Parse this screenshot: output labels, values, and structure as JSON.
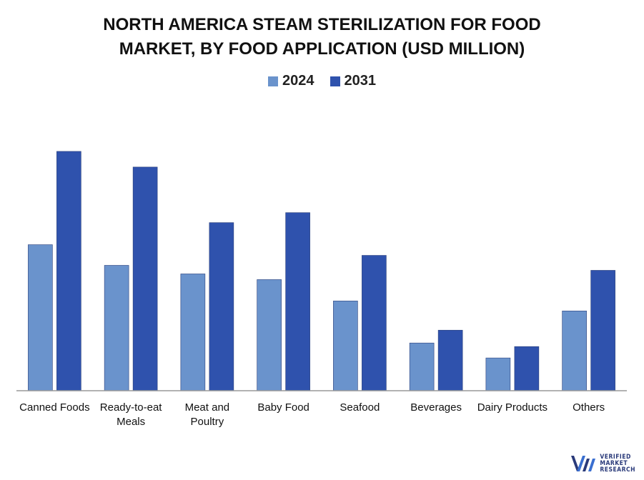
{
  "title_lines": [
    "NORTH AMERICA STEAM STERILIZATION FOR FOOD",
    "MARKET, BY FOOD APPLICATION (USD MILLION)"
  ],
  "colors": {
    "s2024": "#6a93cc",
    "s2031": "#2f52ad",
    "axis": "#999999"
  },
  "logo": {
    "lines": [
      "VERIFIED",
      "MARKET",
      "RESEARCH"
    ]
  },
  "chart_data": {
    "type": "bar",
    "title": "NORTH AMERICA STEAM STERILIZATION FOR FOOD MARKET, BY FOOD APPLICATION (USD MILLION)",
    "categories": [
      [
        "Canned Foods"
      ],
      [
        "Ready-to-eat",
        "Meals"
      ],
      [
        "Meat and",
        "Poultry"
      ],
      [
        "Baby Food"
      ],
      [
        "Seafood"
      ],
      [
        "Beverages"
      ],
      [
        "Dairy Products"
      ],
      [
        "Others"
      ]
    ],
    "series": [
      {
        "name": "2024",
        "values": [
          205,
          176,
          164,
          156,
          126,
          67,
          46,
          112
        ]
      },
      {
        "name": "2031",
        "values": [
          336,
          314,
          236,
          250,
          190,
          85,
          62,
          169
        ]
      }
    ],
    "ylim": [
      0,
      360
    ],
    "legend": "top-center",
    "grid": false
  }
}
